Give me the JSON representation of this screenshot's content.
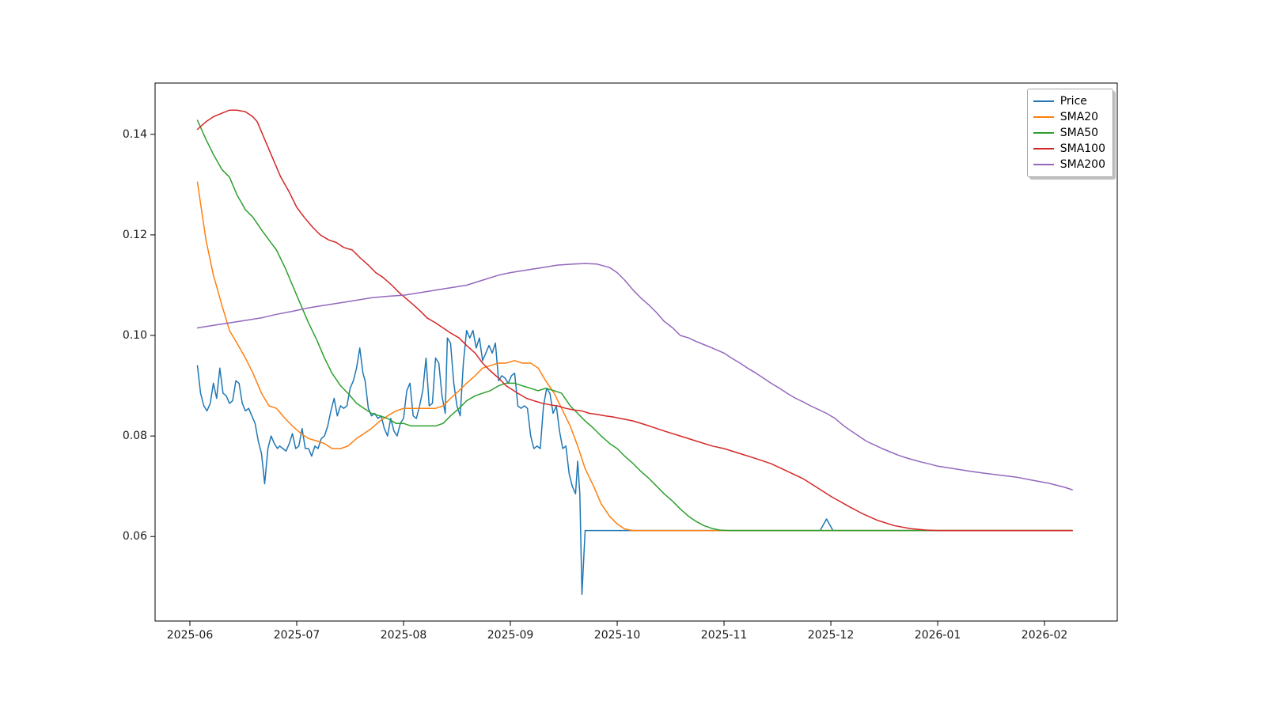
{
  "chart_data": {
    "type": "line",
    "title": "",
    "xlabel": "",
    "ylabel": "",
    "grid": false,
    "legend_position": "top-right",
    "xlim": [
      -0.326,
      8.681
    ],
    "ylim": [
      0.0432,
      0.1502
    ],
    "x_axis": {
      "unit": "months-since-2025-06",
      "ticks": [
        {
          "value": 0,
          "label": "2025-06"
        },
        {
          "value": 1,
          "label": "2025-07"
        },
        {
          "value": 2,
          "label": "2025-08"
        },
        {
          "value": 3,
          "label": "2025-09"
        },
        {
          "value": 4,
          "label": "2025-10"
        },
        {
          "value": 5,
          "label": "2025-11"
        },
        {
          "value": 6,
          "label": "2025-12"
        },
        {
          "value": 7,
          "label": "2026-01"
        },
        {
          "value": 8,
          "label": "2026-02"
        }
      ]
    },
    "y_axis": {
      "ticks": [
        {
          "value": 0.06,
          "label": "0.06"
        },
        {
          "value": 0.08,
          "label": "0.08"
        },
        {
          "value": 0.1,
          "label": "0.10"
        },
        {
          "value": 0.12,
          "label": "0.12"
        },
        {
          "value": 0.14,
          "label": "0.14"
        }
      ]
    },
    "series": [
      {
        "name": "Price",
        "color": "#1f77b4",
        "x": [
          0.07,
          0.1,
          0.13,
          0.16,
          0.19,
          0.22,
          0.25,
          0.28,
          0.31,
          0.34,
          0.37,
          0.4,
          0.43,
          0.46,
          0.49,
          0.52,
          0.55,
          0.58,
          0.61,
          0.64,
          0.67,
          0.7,
          0.73,
          0.76,
          0.79,
          0.82,
          0.84,
          0.87,
          0.9,
          0.93,
          0.96,
          0.99,
          1.02,
          1.05,
          1.08,
          1.11,
          1.14,
          1.17,
          1.2,
          1.23,
          1.26,
          1.29,
          1.32,
          1.35,
          1.38,
          1.41,
          1.44,
          1.47,
          1.5,
          1.53,
          1.56,
          1.59,
          1.62,
          1.64,
          1.67,
          1.7,
          1.73,
          1.76,
          1.79,
          1.82,
          1.85,
          1.88,
          1.91,
          1.94,
          1.97,
          2.0,
          2.03,
          2.06,
          2.09,
          2.12,
          2.15,
          2.18,
          2.21,
          2.24,
          2.27,
          2.3,
          2.33,
          2.36,
          2.39,
          2.41,
          2.44,
          2.47,
          2.5,
          2.53,
          2.56,
          2.59,
          2.62,
          2.65,
          2.68,
          2.71,
          2.74,
          2.77,
          2.8,
          2.83,
          2.86,
          2.89,
          2.92,
          2.95,
          2.98,
          3.01,
          3.04,
          3.07,
          3.1,
          3.13,
          3.16,
          3.19,
          3.22,
          3.25,
          3.28,
          3.31,
          3.34,
          3.37,
          3.4,
          3.43,
          3.46,
          3.49,
          3.52,
          3.55,
          3.58,
          3.61,
          3.63,
          3.65,
          3.67,
          3.7,
          5.9,
          5.96,
          6.02,
          8.26
        ],
        "y": [
          0.094,
          0.0885,
          0.086,
          0.085,
          0.0865,
          0.0905,
          0.0875,
          0.0935,
          0.0885,
          0.088,
          0.0865,
          0.087,
          0.091,
          0.0905,
          0.0865,
          0.085,
          0.0855,
          0.084,
          0.0825,
          0.079,
          0.0765,
          0.0705,
          0.0775,
          0.08,
          0.0785,
          0.0775,
          0.078,
          0.0775,
          0.077,
          0.0785,
          0.0805,
          0.0775,
          0.078,
          0.0815,
          0.0775,
          0.0775,
          0.076,
          0.078,
          0.0775,
          0.0795,
          0.08,
          0.082,
          0.085,
          0.0875,
          0.084,
          0.086,
          0.0855,
          0.086,
          0.0895,
          0.091,
          0.0935,
          0.0975,
          0.0925,
          0.091,
          0.0855,
          0.084,
          0.0845,
          0.0835,
          0.084,
          0.0815,
          0.08,
          0.0835,
          0.081,
          0.08,
          0.0825,
          0.0835,
          0.089,
          0.0905,
          0.084,
          0.0835,
          0.086,
          0.089,
          0.0955,
          0.086,
          0.0865,
          0.0955,
          0.0945,
          0.088,
          0.0845,
          0.0995,
          0.0985,
          0.0905,
          0.086,
          0.084,
          0.0945,
          0.101,
          0.0995,
          0.101,
          0.0975,
          0.0995,
          0.095,
          0.0965,
          0.098,
          0.0965,
          0.0985,
          0.091,
          0.092,
          0.0915,
          0.0905,
          0.092,
          0.0925,
          0.086,
          0.0855,
          0.086,
          0.0855,
          0.08,
          0.0775,
          0.078,
          0.0775,
          0.086,
          0.0895,
          0.0885,
          0.0845,
          0.086,
          0.081,
          0.0775,
          0.078,
          0.0725,
          0.07,
          0.0685,
          0.075,
          0.0685,
          0.0485,
          0.0612,
          0.0612,
          0.0635,
          0.0612,
          0.0612
        ]
      },
      {
        "name": "SMA20",
        "color": "#ff7f0e",
        "x": [
          0.07,
          0.15,
          0.22,
          0.3,
          0.37,
          0.44,
          0.52,
          0.59,
          0.67,
          0.74,
          0.81,
          0.89,
          0.96,
          1.04,
          1.11,
          1.19,
          1.26,
          1.33,
          1.41,
          1.48,
          1.56,
          1.63,
          1.7,
          1.78,
          1.85,
          1.93,
          2.0,
          2.07,
          2.15,
          2.22,
          2.3,
          2.37,
          2.44,
          2.52,
          2.59,
          2.67,
          2.74,
          2.81,
          2.89,
          2.96,
          3.04,
          3.11,
          3.19,
          3.26,
          3.33,
          3.41,
          3.48,
          3.56,
          3.63,
          3.7,
          3.78,
          3.85,
          3.93,
          4.0,
          4.07,
          4.15,
          4.3,
          4.6,
          5.0,
          5.5,
          6.0,
          6.5,
          7.0,
          7.5,
          8.0,
          8.26
        ],
        "y": [
          0.1305,
          0.119,
          0.112,
          0.106,
          0.101,
          0.0985,
          0.0955,
          0.0925,
          0.0885,
          0.086,
          0.0855,
          0.0835,
          0.082,
          0.0805,
          0.0795,
          0.079,
          0.0785,
          0.0775,
          0.0775,
          0.078,
          0.0795,
          0.0805,
          0.0815,
          0.083,
          0.084,
          0.085,
          0.0855,
          0.0855,
          0.0855,
          0.0855,
          0.0855,
          0.086,
          0.0875,
          0.089,
          0.0905,
          0.092,
          0.0935,
          0.094,
          0.0945,
          0.0945,
          0.095,
          0.0945,
          0.0945,
          0.0935,
          0.091,
          0.0885,
          0.0855,
          0.082,
          0.078,
          0.0735,
          0.07,
          0.0665,
          0.064,
          0.0625,
          0.0615,
          0.0612,
          0.0612,
          0.0612,
          0.0612,
          0.0612,
          0.0612,
          0.0612,
          0.0612,
          0.0612,
          0.0612,
          0.0612
        ]
      },
      {
        "name": "SMA50",
        "color": "#2ca02c",
        "x": [
          0.07,
          0.15,
          0.22,
          0.3,
          0.37,
          0.44,
          0.52,
          0.59,
          0.67,
          0.74,
          0.81,
          0.89,
          0.96,
          1.04,
          1.11,
          1.19,
          1.26,
          1.33,
          1.41,
          1.48,
          1.56,
          1.63,
          1.7,
          1.78,
          1.85,
          1.93,
          2.0,
          2.07,
          2.15,
          2.22,
          2.3,
          2.37,
          2.44,
          2.52,
          2.59,
          2.67,
          2.74,
          2.81,
          2.89,
          2.96,
          3.04,
          3.11,
          3.19,
          3.26,
          3.33,
          3.41,
          3.48,
          3.56,
          3.63,
          3.7,
          3.78,
          3.85,
          3.93,
          4.0,
          4.07,
          4.15,
          4.22,
          4.3,
          4.37,
          4.44,
          4.52,
          4.59,
          4.67,
          4.74,
          4.81,
          4.89,
          4.96,
          5.04,
          5.3,
          5.7,
          6.1,
          6.5,
          7.0,
          7.5,
          8.0,
          8.26
        ],
        "y": [
          0.1428,
          0.139,
          0.136,
          0.133,
          0.1315,
          0.128,
          0.125,
          0.1235,
          0.121,
          0.119,
          0.117,
          0.1135,
          0.11,
          0.106,
          0.1025,
          0.099,
          0.0955,
          0.0925,
          0.09,
          0.0885,
          0.0865,
          0.0855,
          0.0845,
          0.084,
          0.0835,
          0.0825,
          0.0825,
          0.082,
          0.082,
          0.082,
          0.082,
          0.0825,
          0.084,
          0.0855,
          0.087,
          0.088,
          0.0885,
          0.089,
          0.09,
          0.0905,
          0.0905,
          0.09,
          0.0895,
          0.089,
          0.0895,
          0.089,
          0.0885,
          0.086,
          0.0845,
          0.083,
          0.0815,
          0.08,
          0.0785,
          0.0775,
          0.076,
          0.0745,
          0.073,
          0.0715,
          0.07,
          0.0685,
          0.067,
          0.0655,
          0.064,
          0.063,
          0.0622,
          0.0616,
          0.0613,
          0.0612,
          0.0612,
          0.0612,
          0.0612,
          0.0612,
          0.0612,
          0.0612,
          0.0612,
          0.0612
        ]
      },
      {
        "name": "SMA100",
        "color": "#d62728",
        "x": [
          0.07,
          0.15,
          0.22,
          0.3,
          0.37,
          0.44,
          0.52,
          0.59,
          0.63,
          0.7,
          0.78,
          0.85,
          0.93,
          1.0,
          1.07,
          1.15,
          1.22,
          1.3,
          1.37,
          1.44,
          1.52,
          1.59,
          1.67,
          1.74,
          1.81,
          1.89,
          1.96,
          2.07,
          2.15,
          2.22,
          2.3,
          2.37,
          2.44,
          2.52,
          2.59,
          2.67,
          2.74,
          2.81,
          2.89,
          2.96,
          3.07,
          3.15,
          3.22,
          3.3,
          3.37,
          3.44,
          3.52,
          3.59,
          3.67,
          3.74,
          3.81,
          3.89,
          3.96,
          4.15,
          4.3,
          4.44,
          4.59,
          4.74,
          4.89,
          5.0,
          5.15,
          5.3,
          5.44,
          5.59,
          5.74,
          5.89,
          6.0,
          6.15,
          6.3,
          6.44,
          6.59,
          6.74,
          6.89,
          7.0,
          7.5,
          8.0,
          8.26
        ],
        "y": [
          0.141,
          0.1425,
          0.1435,
          0.1442,
          0.1448,
          0.1448,
          0.1445,
          0.1435,
          0.1425,
          0.139,
          0.135,
          0.1315,
          0.1285,
          0.1255,
          0.1235,
          0.1215,
          0.12,
          0.119,
          0.1185,
          0.1175,
          0.117,
          0.1155,
          0.114,
          0.1125,
          0.1115,
          0.11,
          0.1085,
          0.1065,
          0.105,
          0.1035,
          0.1025,
          0.1015,
          0.1005,
          0.0995,
          0.098,
          0.0965,
          0.0945,
          0.093,
          0.0915,
          0.09,
          0.0885,
          0.0875,
          0.087,
          0.0865,
          0.0862,
          0.086,
          0.0855,
          0.0852,
          0.085,
          0.0845,
          0.0843,
          0.084,
          0.0838,
          0.083,
          0.082,
          0.081,
          0.08,
          0.079,
          0.078,
          0.0775,
          0.0765,
          0.0755,
          0.0745,
          0.073,
          0.0715,
          0.0695,
          0.068,
          0.0662,
          0.0645,
          0.0632,
          0.0622,
          0.0616,
          0.0613,
          0.0612,
          0.0612,
          0.0612,
          0.0612
        ]
      },
      {
        "name": "SMA200",
        "color": "#9467bd",
        "x": [
          0.07,
          0.22,
          0.37,
          0.52,
          0.67,
          0.81,
          0.96,
          1.11,
          1.26,
          1.41,
          1.56,
          1.7,
          1.85,
          2.0,
          2.15,
          2.3,
          2.44,
          2.59,
          2.74,
          2.89,
          3.0,
          3.15,
          3.3,
          3.44,
          3.59,
          3.7,
          3.81,
          3.93,
          4.0,
          4.07,
          4.15,
          4.22,
          4.3,
          4.37,
          4.44,
          4.52,
          4.59,
          4.67,
          4.74,
          4.81,
          4.89,
          5.0,
          5.07,
          5.15,
          5.22,
          5.3,
          5.37,
          5.44,
          5.52,
          5.59,
          5.67,
          5.74,
          5.81,
          5.89,
          5.96,
          6.04,
          6.11,
          6.19,
          6.26,
          6.33,
          6.41,
          6.48,
          6.56,
          6.63,
          6.7,
          6.78,
          6.85,
          6.93,
          7.0,
          7.15,
          7.3,
          7.44,
          7.59,
          7.74,
          7.89,
          8.04,
          8.19,
          8.26
        ],
        "y": [
          0.1015,
          0.102,
          0.1025,
          0.103,
          0.1035,
          0.1042,
          0.1048,
          0.1055,
          0.106,
          0.1065,
          0.107,
          0.1075,
          0.1078,
          0.108,
          0.1085,
          0.109,
          0.1095,
          0.11,
          0.111,
          0.112,
          0.1125,
          0.113,
          0.1135,
          0.114,
          0.1142,
          0.1143,
          0.1142,
          0.1135,
          0.1125,
          0.111,
          0.109,
          0.1075,
          0.106,
          0.1045,
          0.1028,
          0.1015,
          0.1,
          0.0995,
          0.0988,
          0.0982,
          0.0975,
          0.0965,
          0.0955,
          0.0945,
          0.0935,
          0.0925,
          0.0915,
          0.0905,
          0.0895,
          0.0885,
          0.0875,
          0.0868,
          0.086,
          0.0852,
          0.0845,
          0.0835,
          0.0822,
          0.081,
          0.08,
          0.079,
          0.0782,
          0.0775,
          0.0768,
          0.0762,
          0.0757,
          0.0752,
          0.0748,
          0.0744,
          0.074,
          0.0735,
          0.073,
          0.0726,
          0.0722,
          0.0718,
          0.0712,
          0.0706,
          0.0698,
          0.0693
        ]
      }
    ]
  }
}
